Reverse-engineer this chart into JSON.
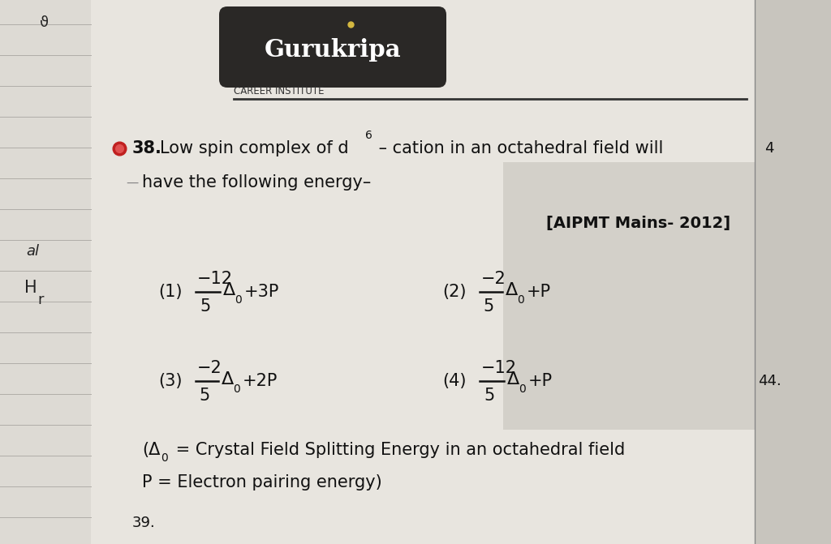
{
  "bg_color": "#c8c5be",
  "page_color": "#e8e5df",
  "left_notebook_color": "#dddad4",
  "logo_bg": "#2a2826",
  "logo_text": "Gurukripa",
  "logo_sub": "CAREER INSTITUTE",
  "q_num": "38.",
  "source": "[AIPMT Mains- 2012]",
  "note1": "(Δ₀ = Crystal Field Splitting Energy in an octahedral field",
  "note2": "P = Electron pairing energy)",
  "text_color": "#111111",
  "white": "#f0ede8",
  "bullet_outer": "#c02020",
  "bullet_inner": "#e05050",
  "side_right_color": "#888888",
  "line_color": "#444444"
}
